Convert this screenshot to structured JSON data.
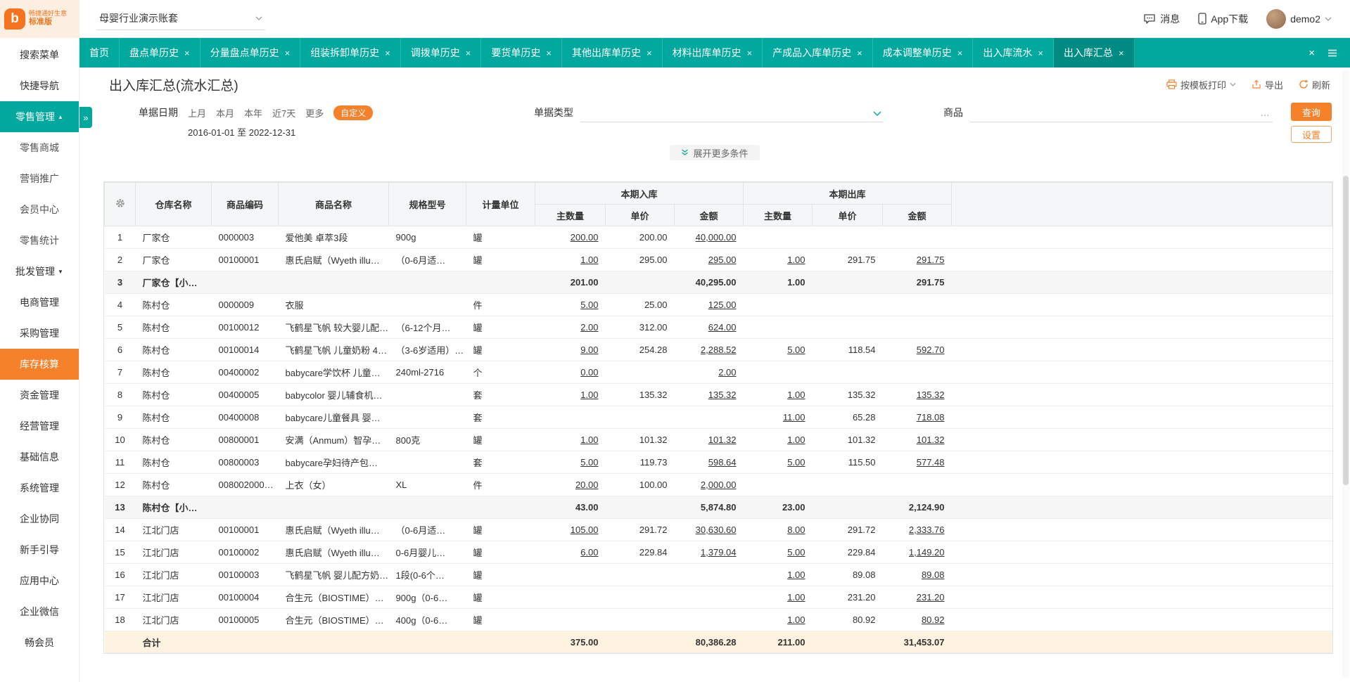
{
  "colors": {
    "teal": "#00A89E",
    "orange": "#F5822B"
  },
  "icons": {
    "close": "×",
    "collapse": "»",
    "ellipsis": "…",
    "caret_up": "▲",
    "caret_down": "▼"
  },
  "topbar": {
    "logo_title": "畅捷通好生意",
    "logo_edition": "标准版",
    "account": "母婴行业演示账套",
    "messages": "消息",
    "app_download": "App下载",
    "username": "demo2"
  },
  "sidebar": {
    "items": [
      {
        "label": "搜索菜单"
      },
      {
        "label": "快捷导航"
      },
      {
        "label": "零售管理",
        "variant": "group-active",
        "arrow": "caret_up"
      },
      {
        "label": "零售商城",
        "variant": "sub"
      },
      {
        "label": "营销推广",
        "variant": "sub"
      },
      {
        "label": "会员中心",
        "variant": "sub"
      },
      {
        "label": "零售统计",
        "variant": "sub"
      },
      {
        "label": "批发管理",
        "arrow": "caret_down"
      },
      {
        "label": "电商管理"
      },
      {
        "label": "采购管理"
      },
      {
        "label": "库存核算",
        "variant": "active"
      },
      {
        "label": "资金管理"
      },
      {
        "label": "经营管理"
      },
      {
        "label": "基础信息"
      },
      {
        "label": "系统管理"
      },
      {
        "label": "企业协同"
      },
      {
        "label": "新手引导"
      },
      {
        "label": "应用中心"
      },
      {
        "label": "企业微信"
      },
      {
        "label": "畅会员"
      }
    ]
  },
  "tabs": [
    {
      "label": "首页",
      "closable": false
    },
    {
      "label": "盘点单历史",
      "closable": true
    },
    {
      "label": "分量盘点单历史",
      "closable": true
    },
    {
      "label": "组装拆卸单历史",
      "closable": true
    },
    {
      "label": "调拨单历史",
      "closable": true
    },
    {
      "label": "要货单历史",
      "closable": true
    },
    {
      "label": "其他出库单历史",
      "closable": true
    },
    {
      "label": "材料出库单历史",
      "closable": true
    },
    {
      "label": "产成品入库单历史",
      "closable": true
    },
    {
      "label": "成本调整单历史",
      "closable": true
    },
    {
      "label": "出入库流水",
      "closable": true
    },
    {
      "label": "出入库汇总",
      "closable": true,
      "active": true
    }
  ],
  "page": {
    "title": "出入库汇总(流水汇总)",
    "print_label": "按模板打印",
    "export_label": "导出",
    "refresh_label": "刷新"
  },
  "filters": {
    "date_label": "单据日期",
    "date_options": [
      "上月",
      "本月",
      "本年",
      "近7天",
      "更多"
    ],
    "custom_label": "自定义",
    "date_range": "2016-01-01 至 2022-12-31",
    "doc_type_label": "单据类型",
    "product_label": "商品",
    "query_button": "查询",
    "settings_button": "设置",
    "expand_more": "展开更多条件"
  },
  "table": {
    "columns": [
      "仓库名称",
      "商品编码",
      "商品名称",
      "规格型号",
      "计量单位"
    ],
    "group_in": "本期入库",
    "group_out": "本期出库",
    "sub_columns": [
      "主数量",
      "单价",
      "金额"
    ],
    "rows": [
      {
        "n": "1",
        "wh": "厂家仓",
        "code": "0000003",
        "name": "爱他美 卓萃3段",
        "spec": "900g",
        "unit": "罐",
        "iq": "200.00",
        "ip": "200.00",
        "ia": "40,000.00",
        "oq": "",
        "op": "",
        "oa": ""
      },
      {
        "n": "2",
        "wh": "厂家仓",
        "code": "00100001",
        "name": "惠氏启赋（Wyeth illu…",
        "spec": "（0-6月适…",
        "unit": "罐",
        "iq": "1.00",
        "ip": "295.00",
        "ia": "295.00",
        "oq": "1.00",
        "op": "291.75",
        "oa": "291.75"
      },
      {
        "n": "3",
        "wh": "厂家仓【小…",
        "summary": true,
        "iq": "201.00",
        "ia": "40,295.00",
        "oq": "1.00",
        "oa": "291.75"
      },
      {
        "n": "4",
        "wh": "陈村仓",
        "code": "0000009",
        "name": "衣服",
        "spec": "",
        "unit": "件",
        "iq": "5.00",
        "ip": "25.00",
        "ia": "125.00",
        "oq": "",
        "op": "",
        "oa": ""
      },
      {
        "n": "5",
        "wh": "陈村仓",
        "code": "00100012",
        "name": "飞鹤星飞帆 较大婴儿配…",
        "spec": "（6-12个月…",
        "unit": "罐",
        "iq": "2.00",
        "ip": "312.00",
        "ia": "624.00",
        "oq": "",
        "op": "",
        "oa": ""
      },
      {
        "n": "6",
        "wh": "陈村仓",
        "code": "00100014",
        "name": "飞鹤星飞帆 儿童奶粉 4…",
        "spec": "（3-6岁适用）…",
        "unit": "罐",
        "iq": "9.00",
        "ip": "254.28",
        "ia": "2,288.52",
        "oq": "5.00",
        "op": "118.54",
        "oa": "592.70"
      },
      {
        "n": "7",
        "wh": "陈村仓",
        "code": "00400002",
        "name": "babycare学饮杯 儿童…",
        "spec": "240ml-2716",
        "unit": "个",
        "iq": "0.00",
        "ip": "",
        "ia": "2.00",
        "oq": "",
        "op": "",
        "oa": ""
      },
      {
        "n": "8",
        "wh": "陈村仓",
        "code": "00400005",
        "name": "babycolor 婴儿辅食机…",
        "spec": "",
        "unit": "套",
        "iq": "1.00",
        "ip": "135.32",
        "ia": "135.32",
        "oq": "1.00",
        "op": "135.32",
        "oa": "135.32"
      },
      {
        "n": "9",
        "wh": "陈村仓",
        "code": "00400008",
        "name": "babycare儿童餐具 婴…",
        "spec": "",
        "unit": "套",
        "iq": "",
        "ip": "",
        "ia": "",
        "oq": "11.00",
        "op": "65.28",
        "oa": "718.08"
      },
      {
        "n": "10",
        "wh": "陈村仓",
        "code": "00800001",
        "name": "安满（Anmum）智孕…",
        "spec": "800克",
        "unit": "罐",
        "iq": "1.00",
        "ip": "101.32",
        "ia": "101.32",
        "oq": "1.00",
        "op": "101.32",
        "oa": "101.32"
      },
      {
        "n": "11",
        "wh": "陈村仓",
        "code": "00800003",
        "name": "babycare孕妇待产包…",
        "spec": "",
        "unit": "套",
        "iq": "5.00",
        "ip": "119.73",
        "ia": "598.64",
        "oq": "5.00",
        "op": "115.50",
        "oa": "577.48"
      },
      {
        "n": "12",
        "wh": "陈村仓",
        "code": "008002000…",
        "name": "上衣（女）",
        "spec": "XL",
        "unit": "件",
        "iq": "20.00",
        "ip": "100.00",
        "ia": "2,000.00",
        "oq": "",
        "op": "",
        "oa": ""
      },
      {
        "n": "13",
        "wh": "陈村仓【小…",
        "summary": true,
        "iq": "43.00",
        "ia": "5,874.80",
        "oq": "23.00",
        "oa": "2,124.90"
      },
      {
        "n": "14",
        "wh": "江北门店",
        "code": "00100001",
        "name": "惠氏启赋（Wyeth illu…",
        "spec": "（0-6月适…",
        "unit": "罐",
        "iq": "105.00",
        "ip": "291.72",
        "ia": "30,630.60",
        "oq": "8.00",
        "op": "291.72",
        "oa": "2,333.76"
      },
      {
        "n": "15",
        "wh": "江北门店",
        "code": "00100002",
        "name": "惠氏启赋（Wyeth illu…",
        "spec": "0-6月婴儿…",
        "unit": "罐",
        "iq": "6.00",
        "ip": "229.84",
        "ia": "1,379.04",
        "oq": "5.00",
        "op": "229.84",
        "oa": "1,149.20"
      },
      {
        "n": "16",
        "wh": "江北门店",
        "code": "00100003",
        "name": "飞鹤星飞帆 婴儿配方奶…",
        "spec": "1段(0-6个…",
        "unit": "罐",
        "iq": "",
        "ip": "",
        "ia": "",
        "oq": "1.00",
        "op": "89.08",
        "oa": "89.08"
      },
      {
        "n": "17",
        "wh": "江北门店",
        "code": "00100004",
        "name": "合生元（BIOSTIME）…",
        "spec": "900g（0-6…",
        "unit": "罐",
        "iq": "",
        "ip": "",
        "ia": "",
        "oq": "1.00",
        "op": "231.20",
        "oa": "231.20"
      },
      {
        "n": "18",
        "wh": "江北门店",
        "code": "00100005",
        "name": "合生元（BIOSTIME）…",
        "spec": "400g（0-6…",
        "unit": "罐",
        "iq": "",
        "ip": "",
        "ia": "",
        "oq": "1.00",
        "op": "80.92",
        "oa": "80.92"
      }
    ],
    "footer": {
      "label": "合计",
      "in_qty": "375.00",
      "in_amount": "80,386.28",
      "out_qty": "211.00",
      "out_amount": "31,453.07"
    }
  }
}
